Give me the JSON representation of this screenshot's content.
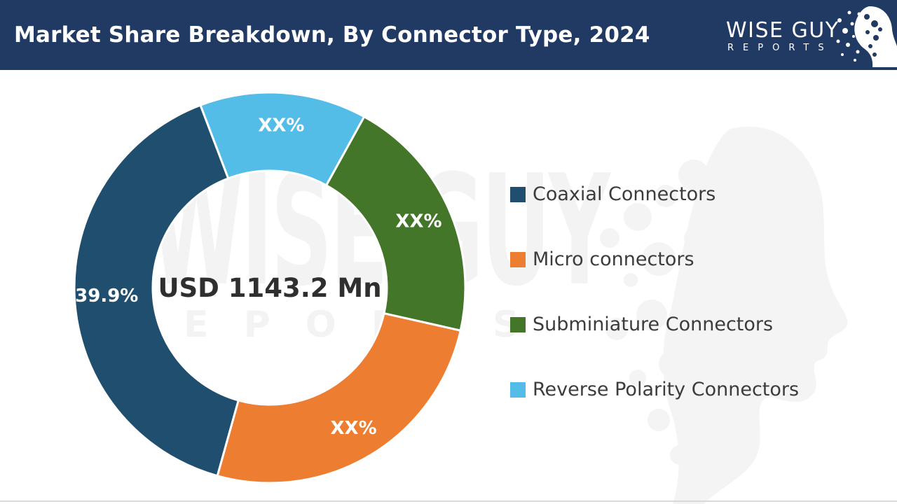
{
  "header": {
    "title": "Market Share Breakdown, By Connector Type, 2024",
    "background_color": "#203A64",
    "logo": {
      "line1": "WISE GUY",
      "line2": "REPORTS"
    }
  },
  "watermark": {
    "line1": "WISE GUY",
    "line2": "REPORTS"
  },
  "chart_data": {
    "type": "pie",
    "subtype": "donut",
    "title": "Market Share Breakdown, By Connector Type, 2024",
    "center_label": "USD 1143.2 Mn",
    "legend_position": "right",
    "geometry": {
      "outer_radius": 279,
      "inner_radius": 167,
      "label_radius": 233,
      "start_angle_deg": -20.8,
      "clockwise": true,
      "draw_order": [
        3,
        2,
        1,
        0
      ]
    },
    "segments": [
      {
        "label": "Coaxial Connectors",
        "value_pct": 39.9,
        "display_label": "39.9%",
        "color": "#1F4E6E"
      },
      {
        "label": "Micro connectors",
        "value_pct": 25.8,
        "display_label": "XX%",
        "color": "#ED7D31"
      },
      {
        "label": "Subminiature Connectors",
        "value_pct": 20.5,
        "display_label": "XX%",
        "color": "#447629"
      },
      {
        "label": "Reverse Polarity Connectors",
        "value_pct": 13.8,
        "display_label": "XX%",
        "color": "#53BDE8"
      }
    ]
  },
  "footer": {
    "divider_color": "#d9d9d9"
  }
}
